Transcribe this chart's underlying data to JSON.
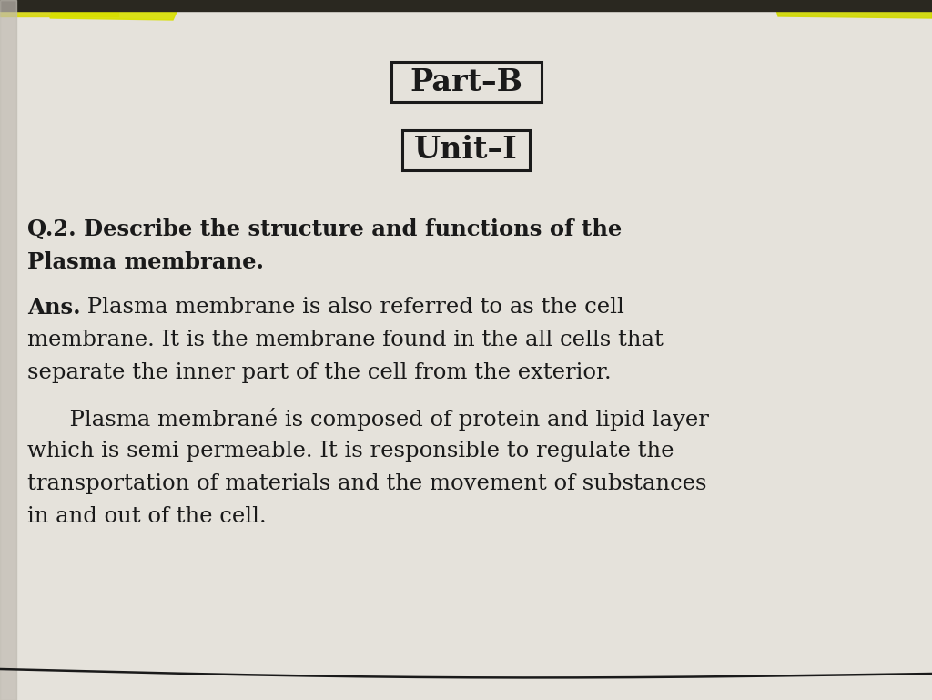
{
  "background_color": "#e5e2db",
  "highlight_color": "#e8f000",
  "part_b_text": "Part–B",
  "unit_i_text": "Unit–I",
  "q_line1": "Q.2. Describe the structure and functions of the",
  "q_line2": "Plasma membrane.",
  "ans_label": "Ans.",
  "ans_line1": " Plasma membrane is also referred to as the cell",
  "ans_line2": "membrane. It is the membrane found in the all cells that",
  "ans_line3": "separate the inner part of the cell from the exterior.",
  "para2_line1": "      Plasma membrané is composed of protein and lipid layer",
  "para2_line2": "which is semi permeable. It is responsible to regulate the",
  "para2_line3": "transportation of materials and the movement of substances",
  "para2_line4": "in and out of the cell.",
  "text_color": "#1a1a1a",
  "box_edge_color": "#1a1a1a",
  "left_shadow_color": "#b8b4ac",
  "font_size_header": 24,
  "font_size_body": 17.5
}
